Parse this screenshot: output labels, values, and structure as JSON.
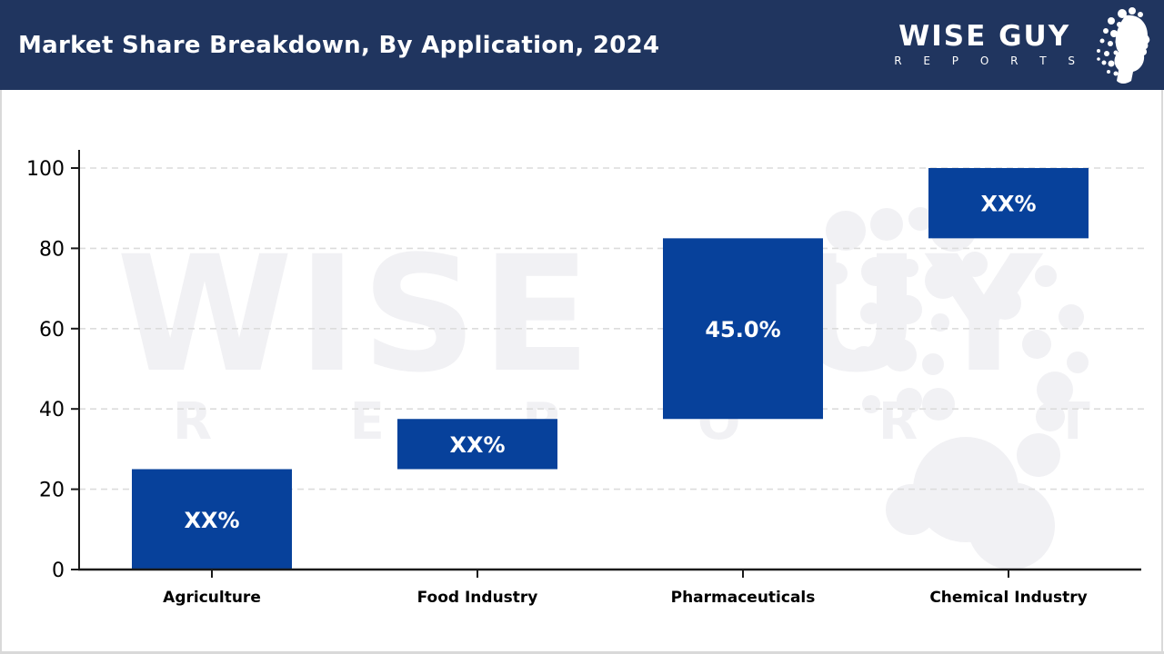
{
  "header": {
    "title": "Market Share Breakdown, By Application, 2024",
    "logo_line1": "WISE GUY",
    "logo_line2": "REPORTS"
  },
  "watermark": {
    "line1": "WISE GUY",
    "line2": "R E P O R T S"
  },
  "colors": {
    "header_bg": "#20355f",
    "bar": "#07419b",
    "bar_label": "#ffffff",
    "axis": "#1a1a1a",
    "grid": "#dcdcdc",
    "tick_label": "#000000",
    "watermark": "#f1f1f4"
  },
  "chart_data": {
    "type": "bar",
    "subtype": "waterfall",
    "title": "Market Share Breakdown, By Application, 2024",
    "xlabel": "",
    "ylabel": "",
    "categories": [
      "Agriculture",
      "Food Industry",
      "Pharmaceuticals",
      "Chemical Industry"
    ],
    "segments": [
      {
        "category": "Agriculture",
        "start": 0,
        "end": 25,
        "value_label": "XX%"
      },
      {
        "category": "Food Industry",
        "start": 25,
        "end": 37.5,
        "value_label": "XX%"
      },
      {
        "category": "Pharmaceuticals",
        "start": 37.5,
        "end": 82.5,
        "value_label": "45.0%"
      },
      {
        "category": "Chemical Industry",
        "start": 82.5,
        "end": 100,
        "value_label": "XX%"
      }
    ],
    "yticks": [
      0,
      20,
      40,
      60,
      80,
      100
    ],
    "ylim": [
      0,
      104
    ],
    "grid": "horizontal-dashed",
    "legend": null
  }
}
